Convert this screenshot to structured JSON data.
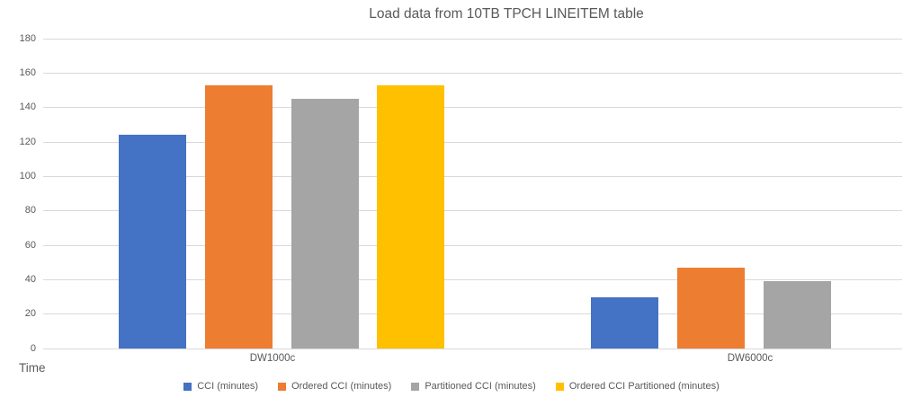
{
  "chart_data": {
    "type": "bar",
    "title": "Load data from 10TB TPCH LINEITEM table",
    "ylabel": "Time",
    "categories": [
      "DW1000c",
      "DW6000c"
    ],
    "series": [
      {
        "name": "CCI (minutes)",
        "color": "#4472C4",
        "values": [
          124,
          30
        ]
      },
      {
        "name": "Ordered CCI (minutes)",
        "color": "#ED7D31",
        "values": [
          153,
          47
        ]
      },
      {
        "name": "Partitioned CCI (minutes)",
        "color": "#A5A5A5",
        "values": [
          145,
          39
        ]
      },
      {
        "name": "Ordered CCI Partitioned (minutes)",
        "color": "#FFC000",
        "values": [
          153,
          null
        ]
      }
    ],
    "ylim": [
      0,
      180
    ],
    "yticks": [
      0,
      20,
      40,
      60,
      80,
      100,
      120,
      140,
      160,
      180
    ],
    "grid": true,
    "legend_position": "bottom",
    "colors": {
      "text": "#595959",
      "gridline": "#D9D9D9",
      "background": "#FFFFFF"
    }
  }
}
